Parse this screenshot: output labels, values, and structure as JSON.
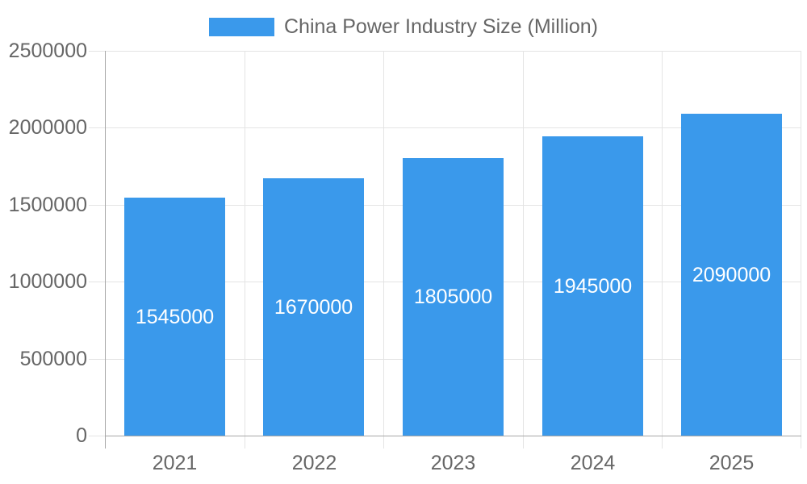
{
  "chart_data": {
    "type": "bar",
    "title": "China Power Industry Size (Million)",
    "legend": {
      "position": "top",
      "label": "China Power Industry Size (Million)"
    },
    "categories": [
      "2021",
      "2022",
      "2023",
      "2024",
      "2025"
    ],
    "series": [
      {
        "name": "China Power Industry Size (Million)",
        "values": [
          1545000,
          1670000,
          1805000,
          1945000,
          2090000
        ]
      }
    ],
    "value_labels": [
      "1545000",
      "1670000",
      "1805000",
      "1945000",
      "2090000"
    ],
    "xlabel": "",
    "ylabel": "",
    "ylim": [
      0,
      2500000
    ],
    "ytick_interval": 500000,
    "ytick_labels": [
      "0",
      "500000",
      "1000000",
      "1500000",
      "2000000",
      "2500000"
    ],
    "grid": true,
    "colors": {
      "bar": "#3A99EB",
      "gridline": "#E4E4E4",
      "axis_line": "#A7A7A7",
      "tick_label": "#666666",
      "legend_text": "#666666",
      "value_label": "#FFFFFF",
      "background": "#FFFFFF"
    }
  }
}
